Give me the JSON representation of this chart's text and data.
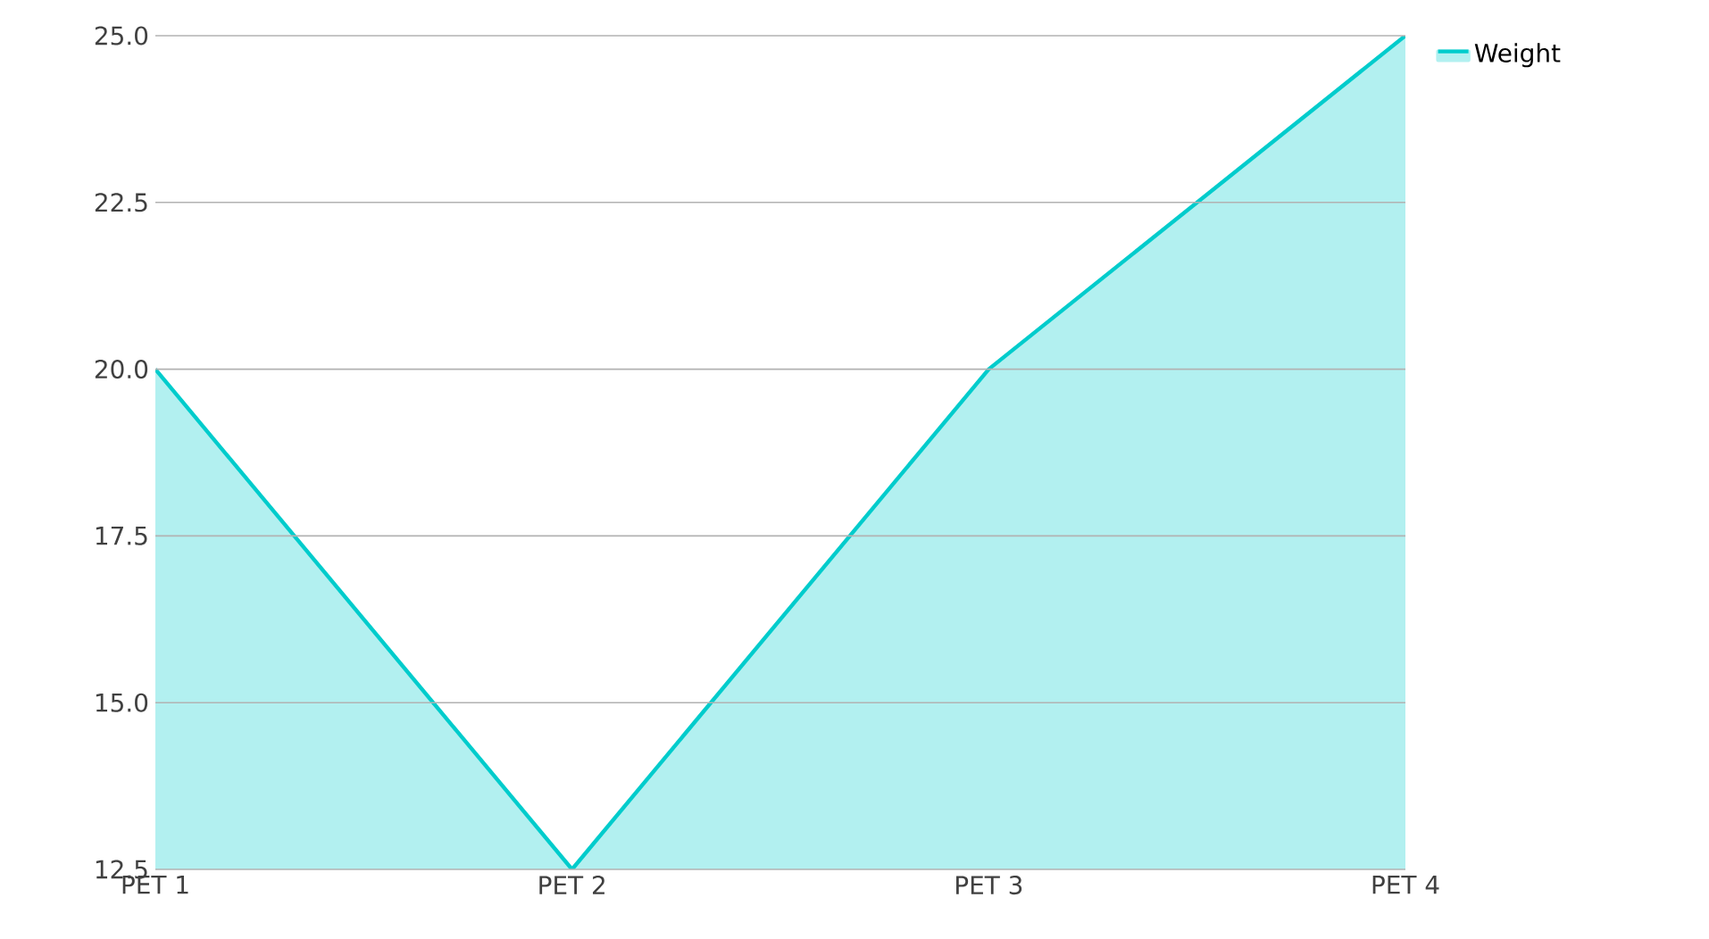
{
  "chart_data": {
    "type": "area",
    "categories": [
      "PET 1",
      "PET 2",
      "PET 3",
      "PET 4"
    ],
    "series": [
      {
        "name": "Weight",
        "color": "#00cccc",
        "values": [
          20,
          12.5,
          20,
          25
        ]
      }
    ],
    "ylim": [
      12.5,
      25
    ],
    "yticks": [
      {
        "value": 12.5,
        "label": "12.5"
      },
      {
        "value": 15,
        "label": "15.0"
      },
      {
        "value": 17.5,
        "label": "17.5"
      },
      {
        "value": 20,
        "label": "20.0"
      },
      {
        "value": 22.5,
        "label": "22.5"
      },
      {
        "value": 25,
        "label": "25.0"
      }
    ],
    "grid": "y",
    "legend": "top right"
  }
}
